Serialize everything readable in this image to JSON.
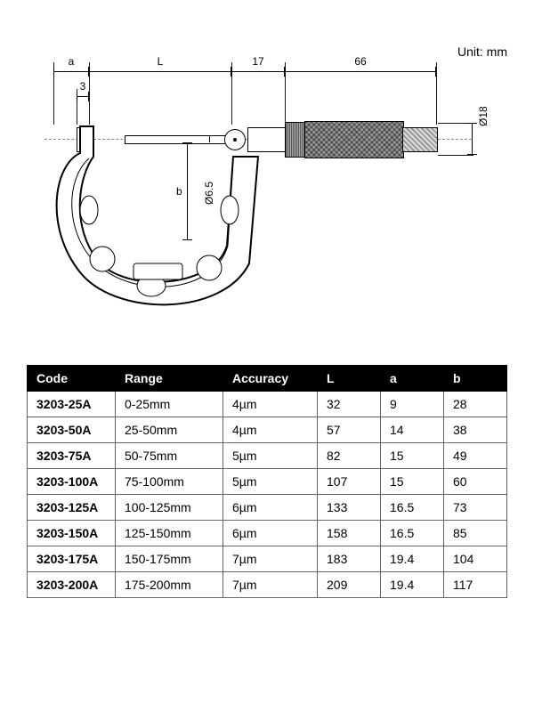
{
  "diagram": {
    "unit_label": "Unit: mm",
    "dims": {
      "a": "a",
      "three": "3",
      "L": "L",
      "seventeen": "17",
      "sixtysix": "66",
      "b": "b",
      "diam_spindle": "Ø6.5",
      "diam_right": "Ø18"
    },
    "colors": {
      "line": "#000000",
      "dash": "#888888",
      "knurl_dark": "#777777",
      "knurl_light": "#cccccc",
      "frame_fill": "#ffffff"
    }
  },
  "table": {
    "headers": [
      "Code",
      "Range",
      "Accuracy",
      "L",
      "a",
      "b"
    ],
    "rows": [
      [
        "3203-25A",
        "0-25mm",
        "4µm",
        "32",
        "9",
        "28"
      ],
      [
        "3203-50A",
        "25-50mm",
        "4µm",
        "57",
        "14",
        "38"
      ],
      [
        "3203-75A",
        "50-75mm",
        "5µm",
        "82",
        "15",
        "49"
      ],
      [
        "3203-100A",
        "75-100mm",
        "5µm",
        "107",
        "15",
        "60"
      ],
      [
        "3203-125A",
        "100-125mm",
        "6µm",
        "133",
        "16.5",
        "73"
      ],
      [
        "3203-150A",
        "125-150mm",
        "6µm",
        "158",
        "16.5",
        "85"
      ],
      [
        "3203-175A",
        "150-175mm",
        "7µm",
        "183",
        "19.4",
        "104"
      ],
      [
        "3203-200A",
        "175-200mm",
        "7µm",
        "209",
        "19.4",
        "117"
      ]
    ],
    "header_bg": "#000000",
    "header_fg": "#ffffff",
    "border_color": "#666666",
    "fontsize": 14
  }
}
